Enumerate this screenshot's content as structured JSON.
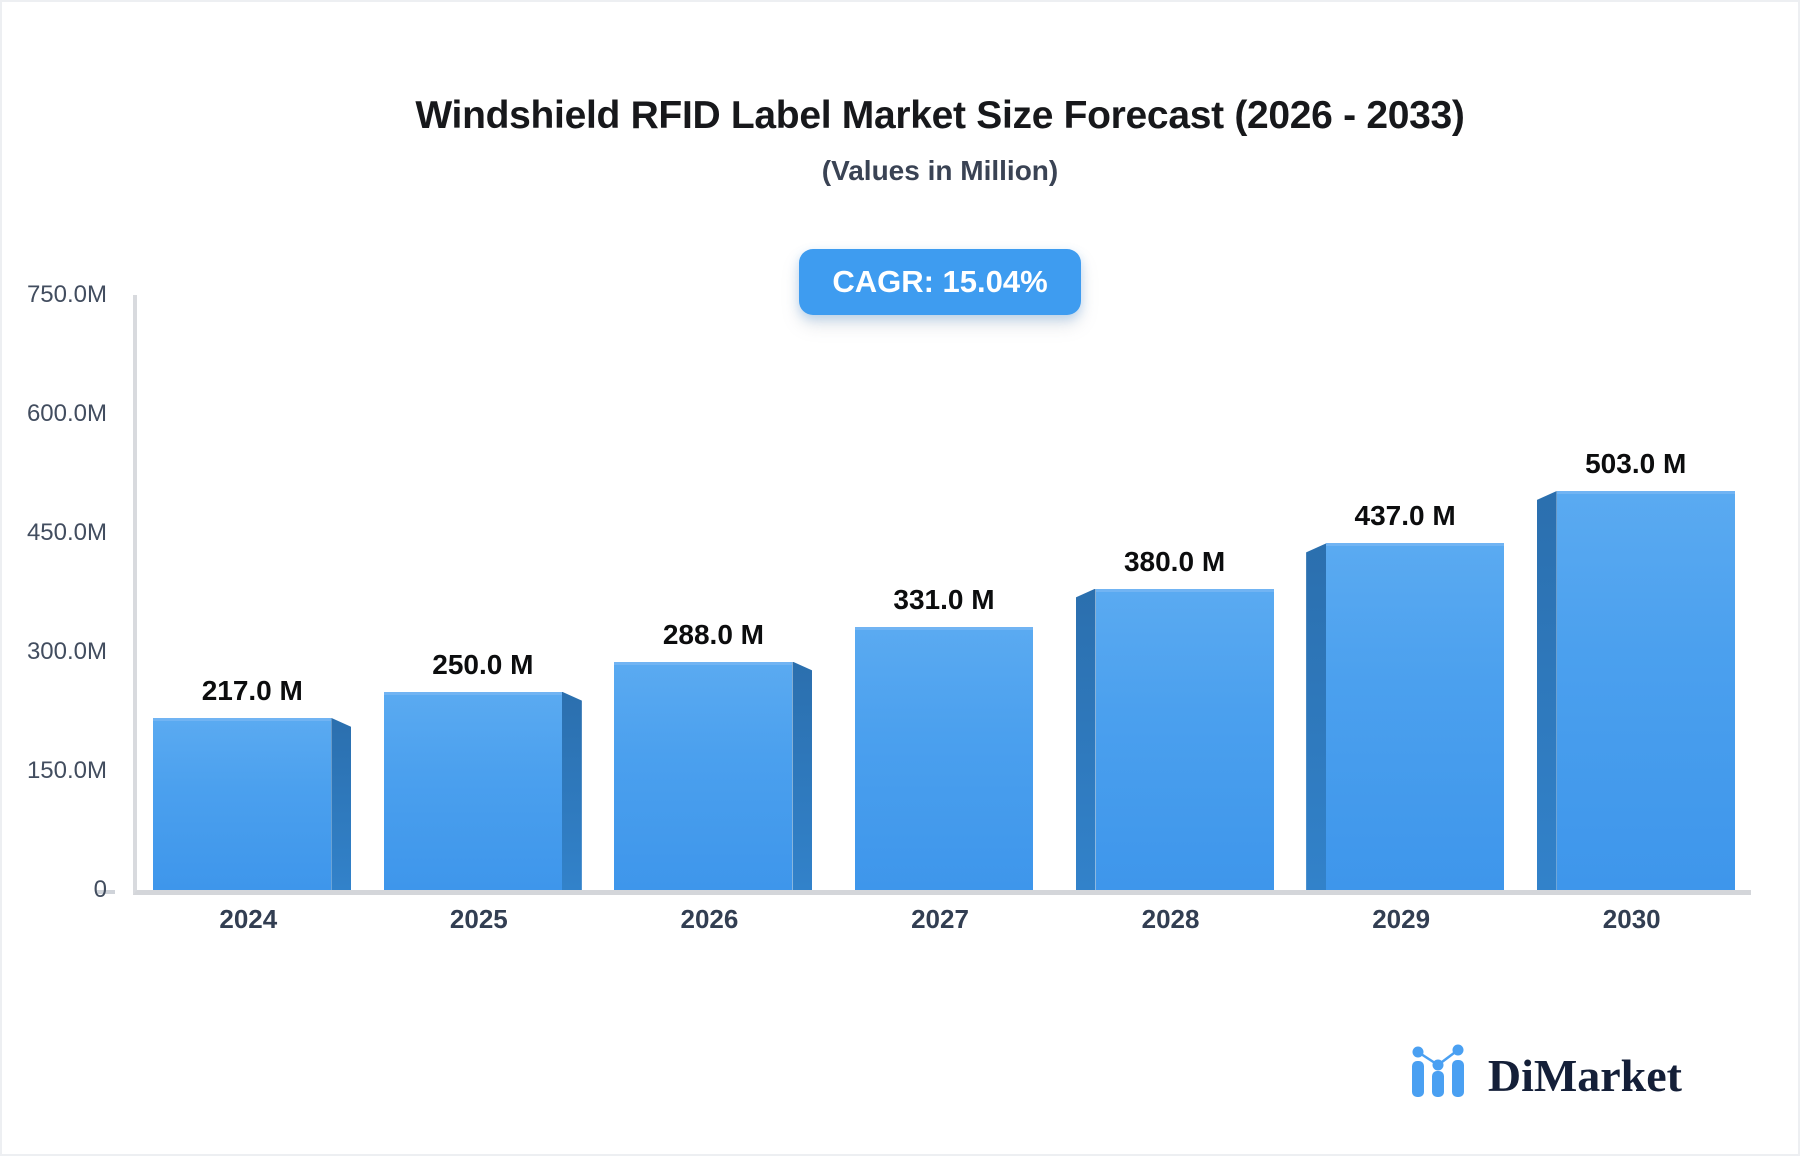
{
  "header": {
    "title": "Windshield RFID Label Market Size Forecast (2026 - 2033)",
    "subtitle": "(Values in Million)",
    "cagr_badge": "CAGR: 15.04%"
  },
  "chart_data": {
    "type": "bar",
    "title": "Windshield RFID Label Market Size Forecast (2026 - 2033)",
    "subtitle": "(Values in Million)",
    "unit": "Million",
    "categories": [
      "2024",
      "2025",
      "2026",
      "2027",
      "2028",
      "2029",
      "2030"
    ],
    "values": [
      217,
      250,
      288,
      331,
      380,
      437,
      503
    ],
    "bar_labels": [
      "217.0 M",
      "250.0 M",
      "288.0 M",
      "331.0 M",
      "380.0 M",
      "437.0 M",
      "503.0 M"
    ],
    "y_axis": {
      "max": 750,
      "ticks": [
        {
          "label": "750.0M",
          "value": 750
        },
        {
          "label": "600.0M",
          "value": 600
        },
        {
          "label": "450.0M",
          "value": 450
        },
        {
          "label": "300.0M",
          "value": 300
        },
        {
          "label": "150.0M",
          "value": 150
        },
        {
          "label": "0",
          "value": 0
        }
      ]
    },
    "xlabel": "",
    "ylabel": "",
    "grid": false,
    "legend": false,
    "style": "3d-bars, perspective toward center"
  },
  "logo": {
    "text": "DiMarket",
    "icon": "mini-bar-chart-with-dots-icon"
  },
  "colors": {
    "bar_face": "#4BA0EE",
    "bar_face_top": "#5AAAF1",
    "bar_face_bottom": "#3E96EB",
    "bar_side": "#2E76BB",
    "badge_bg": "#3E9CF0",
    "badge_text": "#FFFFFF",
    "axis_line": "#D8DADE",
    "title_text": "#17181B",
    "subtitle_text": "#3A4354",
    "tick_text": "#424D5F",
    "year_text": "#323E52",
    "value_text": "#0C0D0E",
    "logo_blue": "#4AA0F2",
    "logo_text": "#141F38"
  }
}
